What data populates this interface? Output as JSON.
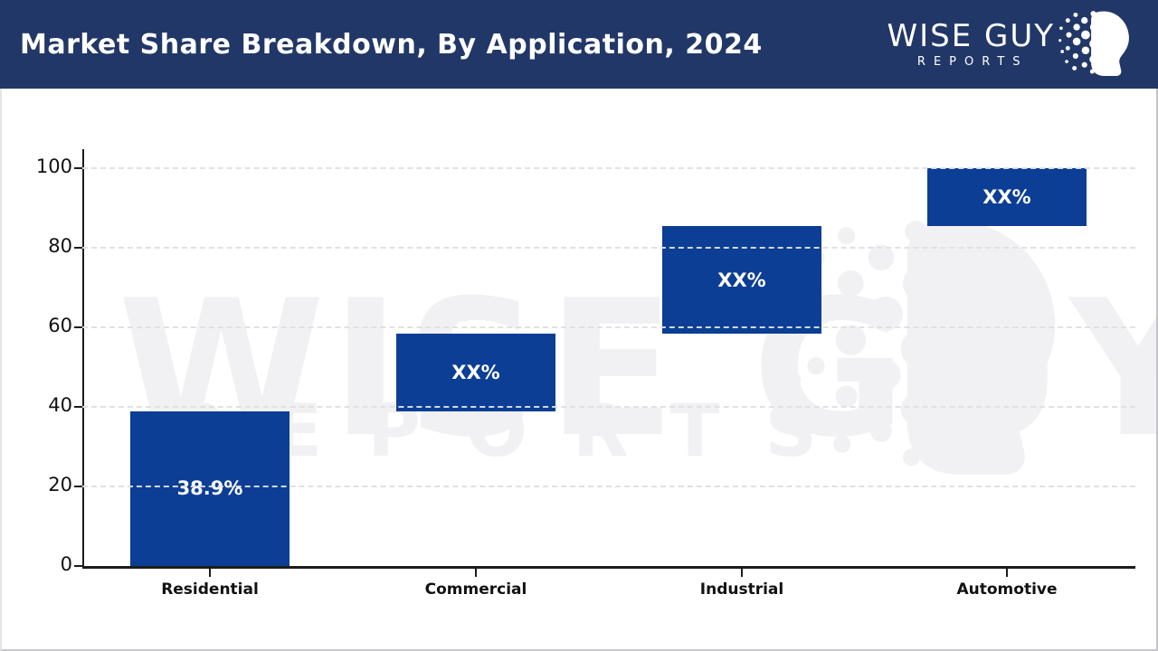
{
  "header": {
    "title": "Market Share Breakdown, By Application, 2024",
    "logo": {
      "line1": "WISE GUY",
      "line2": "REPORTS"
    }
  },
  "watermark": {
    "line1": "WISE GUY",
    "line2": "REPORTS"
  },
  "chart_data": {
    "type": "bar",
    "subtype": "waterfall",
    "title": "Market Share Breakdown, By Application, 2024",
    "xlabel": "",
    "ylabel": "",
    "categories": [
      "Residential",
      "Commercial",
      "Industrial",
      "Automotive"
    ],
    "segments": [
      {
        "category": "Residential",
        "start": 0,
        "end": 38.9,
        "label": "38.9%"
      },
      {
        "category": "Commercial",
        "start": 38.9,
        "end": 58.3,
        "label": "XX%"
      },
      {
        "category": "Industrial",
        "start": 58.3,
        "end": 85.5,
        "label": "XX%"
      },
      {
        "category": "Automotive",
        "start": 85.5,
        "end": 100,
        "label": "XX%"
      }
    ],
    "yticks": [
      0,
      20,
      40,
      60,
      80,
      100
    ],
    "ylim": [
      0,
      105
    ],
    "grid": "horizontal-dashed-over-bars",
    "legend": "none",
    "bar_color": "#0b3e94",
    "header_color": "#213767",
    "watermark_color": "#f1f1f4",
    "axis_color": "#1c1c1c"
  }
}
